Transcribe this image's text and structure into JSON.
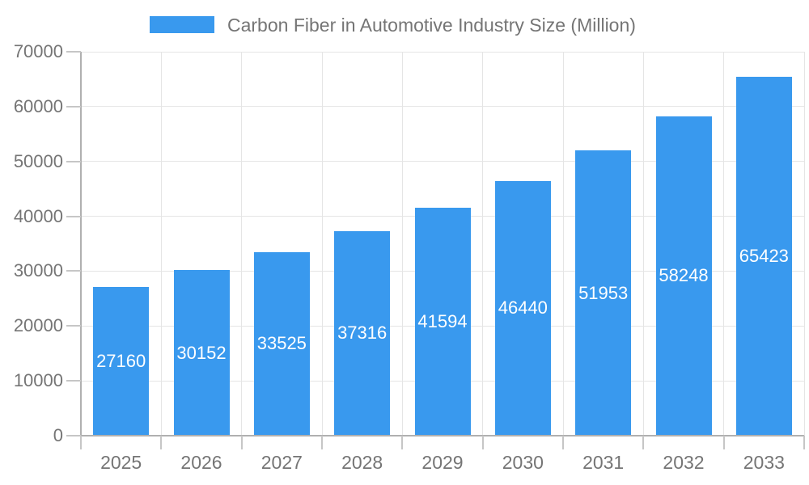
{
  "chart_data": {
    "type": "bar",
    "title": "Carbon Fiber in Automotive Industry Size (Million)",
    "categories": [
      "2025",
      "2026",
      "2027",
      "2028",
      "2029",
      "2030",
      "2031",
      "2032",
      "2033"
    ],
    "series": [
      {
        "name": "Carbon Fiber in Automotive Industry Size (Million)",
        "values": [
          27160,
          30152,
          33525,
          37316,
          41594,
          46440,
          51953,
          58248,
          65423
        ]
      }
    ],
    "xlabel": "",
    "ylabel": "",
    "ylim": [
      0,
      70000
    ],
    "ytick_step": 10000,
    "ytick_labels": [
      "0",
      "10000",
      "20000",
      "30000",
      "40000",
      "50000",
      "60000",
      "70000"
    ],
    "grid": true,
    "legend_position": "top",
    "bar_labels_inside": true
  },
  "colors": {
    "bar": "#3999EE",
    "bar_value_text": "#FFFFFF",
    "axis_text": "#757575",
    "gridline": "#E5E5E5",
    "axis_line": "#B0B0B0",
    "tick": "#C6C6C6",
    "background": "#FFFFFF"
  }
}
